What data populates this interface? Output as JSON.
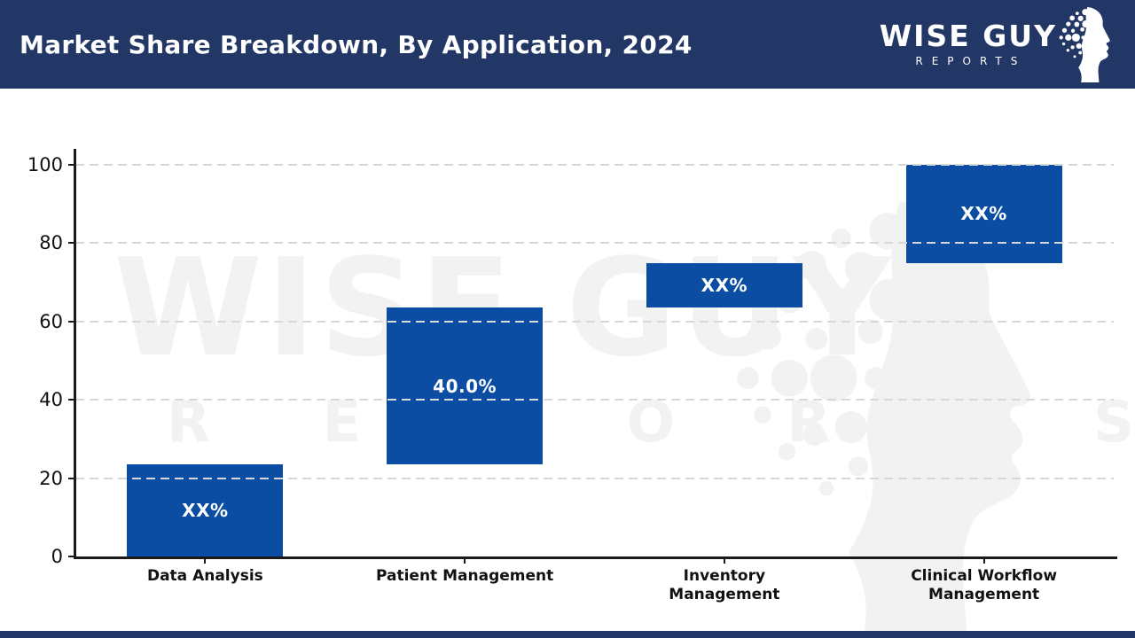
{
  "header": {
    "title": "Market Share Breakdown, By Application, 2024",
    "logo": {
      "line1": "WISE GUY",
      "line2": "REPORTS"
    }
  },
  "watermark": {
    "line1": "WISE GUY",
    "line2": "R E P O R T S"
  },
  "chart_data": {
    "type": "bar",
    "subtype": "waterfall-breakdown",
    "title": "Market Share Breakdown, By Application, 2024",
    "categories": [
      "Data Analysis",
      "Patient Management",
      "Inventory Management",
      "Clinical Workflow Management"
    ],
    "category_lines": [
      [
        "Data Analysis"
      ],
      [
        "Patient Management"
      ],
      [
        "Inventory",
        "Management"
      ],
      [
        "Clinical Workflow",
        "Management"
      ]
    ],
    "series": [
      {
        "name": "Data Analysis",
        "start": 0,
        "end": 23.5,
        "value": 23.5,
        "label": "XX%"
      },
      {
        "name": "Patient Management",
        "start": 23.5,
        "end": 63.5,
        "value": 40.0,
        "label": "40.0%"
      },
      {
        "name": "Inventory Management",
        "start": 63.5,
        "end": 75,
        "value": 11.5,
        "label": "XX%"
      },
      {
        "name": "Clinical Workflow Management",
        "start": 75,
        "end": 100,
        "value": 25.0,
        "label": "XX%"
      }
    ],
    "xlabel": "",
    "ylabel": "",
    "ylim": [
      0,
      104
    ],
    "yticks": [
      0,
      20,
      40,
      60,
      80,
      100
    ],
    "grid": "horizontal-dashed-over-bars",
    "legend": "none",
    "bar_color": "#0b4da2",
    "bar_label_color": "#ffffff",
    "header_color": "#223765",
    "gridline_color": "#d8d8d8"
  }
}
